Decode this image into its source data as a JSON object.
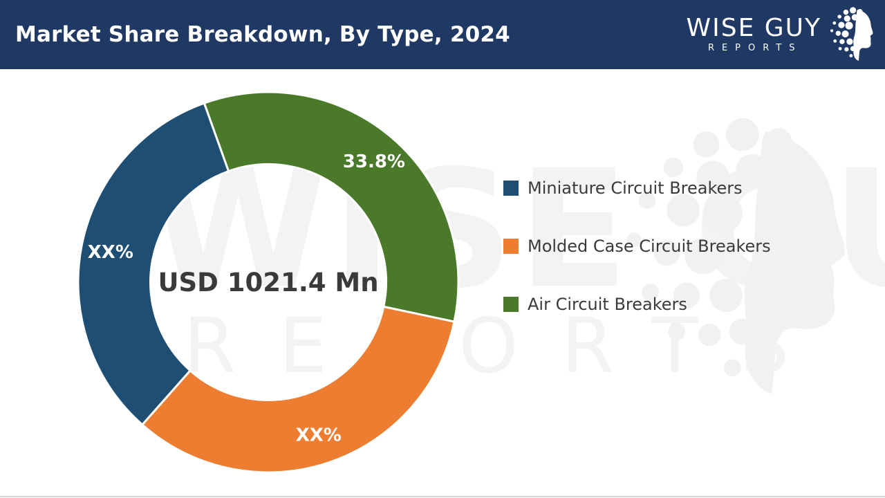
{
  "header": {
    "title": "Market Share Breakdown, By Type, 2024",
    "bg_color": "#203864",
    "logo": {
      "line1": "WISE GUY",
      "line2": "REPORTS"
    }
  },
  "watermark": {
    "line1": "WISE GUY",
    "line2": "REPORTS"
  },
  "chart_data": {
    "type": "pie",
    "subtype": "donut",
    "title": "Market Share Breakdown, By Type, 2024",
    "center_label": "USD 1021.4 Mn",
    "start_angle_deg": 109.7,
    "direction": "clockwise",
    "inner_radius_ratio": 0.62,
    "legend_position": "right",
    "segments": [
      {
        "label": "Air Circuit Breakers",
        "value_pct": 33.8,
        "display_label": "33.8%",
        "color": "#4A7A29"
      },
      {
        "label": "Molded Case Circuit Breakers",
        "value_pct": 33.2,
        "display_label": "XX%",
        "color": "#EC7D31"
      },
      {
        "label": "Miniature Circuit Breakers",
        "value_pct": 33.0,
        "display_label": "XX%",
        "color": "#1F4E74"
      }
    ],
    "legend": [
      {
        "label": "Miniature Circuit Breakers",
        "color": "#1F4E74"
      },
      {
        "label": "Molded Case Circuit Breakers",
        "color": "#EC7D31"
      },
      {
        "label": "Air Circuit Breakers",
        "color": "#4A7A29"
      }
    ]
  }
}
